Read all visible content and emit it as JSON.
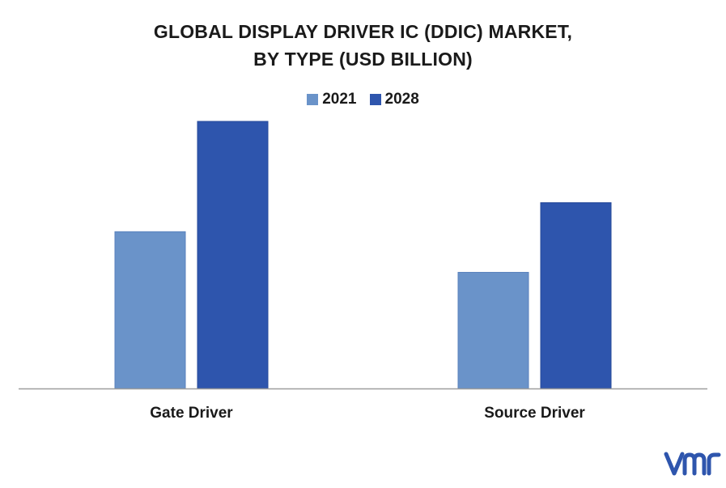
{
  "title_line1": "GLOBAL DISPLAY DRIVER IC (DDIC) MARKET,",
  "title_line2": "BY TYPE (USD BILLION)",
  "logo_text": "vmr",
  "colors": {
    "series_2021": "#6a93c9",
    "series_2028": "#2e55ad",
    "axis": "#9e9e9e"
  },
  "chart_data": {
    "type": "bar",
    "categories": [
      "Gate Driver",
      "Source Driver"
    ],
    "series": [
      {
        "name": "2021",
        "values": [
          2.7,
          2.0
        ]
      },
      {
        "name": "2028",
        "values": [
          4.6,
          3.2
        ]
      }
    ],
    "ylim": [
      0,
      5
    ],
    "grid": false,
    "legend": "top-center"
  }
}
